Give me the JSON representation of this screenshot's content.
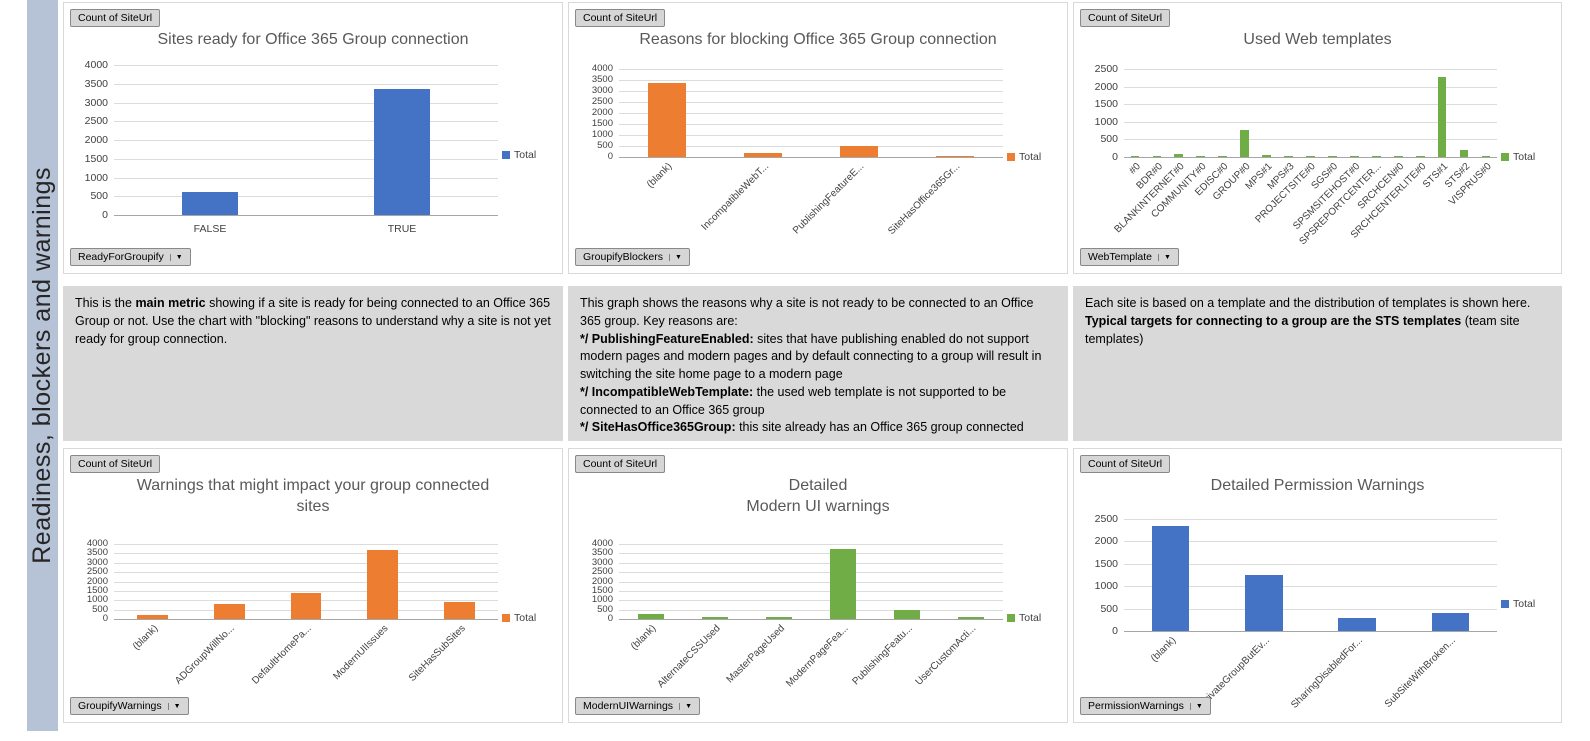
{
  "sidebar": {
    "label": "Readiness, blockers and warnings",
    "bg_color": "#b6c2d6"
  },
  "colors": {
    "blue": "#4472C4",
    "orange": "#ED7D31",
    "green": "#70AD47"
  },
  "common": {
    "count_button": "Count of SiteUrl",
    "legend_label": "Total",
    "dropdown_arrow": "▼"
  },
  "chart_data": [
    {
      "type": "bar",
      "title": "Sites ready for Office 365 Group connection",
      "field": "ReadyForGroupify",
      "color": "blue",
      "categories": [
        "FALSE",
        "TRUE"
      ],
      "values": [
        620,
        3360
      ],
      "ylim": [
        0,
        4000
      ],
      "ytick": 500,
      "grid": true,
      "legend_position": "right"
    },
    {
      "type": "bar",
      "title": "Reasons for blocking Office 365 Group connection",
      "field": "GroupifyBlockers",
      "color": "orange",
      "categories": [
        "(blank)",
        "IncompatibleWebT...",
        "PublishingFeatureE...",
        "SiteHasOffice365Gr..."
      ],
      "values": [
        3350,
        200,
        500,
        60
      ],
      "ylim": [
        0,
        4000
      ],
      "ytick": 500,
      "grid": true,
      "legend_position": "right"
    },
    {
      "type": "bar",
      "title": "Used Web templates",
      "field": "WebTemplate",
      "color": "green",
      "categories": [
        "#0",
        "BDR#0",
        "BLANKINTERNET#0",
        "COMMUNITY#0",
        "EDISC#0",
        "GROUP#0",
        "MPS#1",
        "MPS#3",
        "PROJECTSITE#0",
        "SGS#0",
        "SPSMSITEHOST#0",
        "SPSREPORTCENTER...",
        "SRCHCEN#0",
        "SRCHCENTERLITE#0",
        "STS#1",
        "STS#2",
        "VISPRUS#0"
      ],
      "values": [
        30,
        40,
        90,
        30,
        30,
        760,
        50,
        30,
        40,
        30,
        30,
        30,
        40,
        30,
        2270,
        210,
        40
      ],
      "ylim": [
        0,
        2500
      ],
      "ytick": 500,
      "grid": true,
      "legend_position": "right"
    },
    {
      "type": "bar",
      "title": "Warnings that might impact your group connected\nsites",
      "field": "GroupifyWarnings",
      "color": "orange",
      "categories": [
        "(blank)",
        "ADGroupWillNo...",
        "DefaultHomePa...",
        "ModernUIIssues",
        "SiteHasSubSites"
      ],
      "values": [
        220,
        800,
        1400,
        3700,
        900
      ],
      "ylim": [
        0,
        4000
      ],
      "ytick": 500,
      "grid": true,
      "legend_position": "right"
    },
    {
      "type": "bar",
      "title": "Detailed\nModern UI warnings",
      "field": "ModernUIWarnings",
      "color": "green",
      "categories": [
        "(blank)",
        "AlternateCSSUsed",
        "MasterPageUsed",
        "ModernPageFea...",
        "PublishingFeatu...",
        "UserCustomActi..."
      ],
      "values": [
        280,
        110,
        110,
        3750,
        460,
        110
      ],
      "ylim": [
        0,
        4000
      ],
      "ytick": 500,
      "grid": true,
      "legend_position": "right"
    },
    {
      "type": "bar",
      "title": "Detailed Permission Warnings",
      "field": "PermissionWarnings",
      "color": "blue",
      "categories": [
        "(blank)",
        "PrivateGroupButEv...",
        "SharingDisabledFor...",
        "SubSiteWithBroken..."
      ],
      "values": [
        2350,
        1250,
        300,
        400
      ],
      "ylim": [
        0,
        2500
      ],
      "ytick": 500,
      "grid": true,
      "legend_position": "right"
    }
  ],
  "notes": [
    {
      "segments": [
        {
          "t": "This is the "
        },
        {
          "t": "main metric",
          "b": true
        },
        {
          "t": " showing if a site is ready for being connected to an Office 365 Group or not. Use the chart with \"blocking\" reasons to understand why a site is not yet ready for group connection."
        }
      ]
    },
    {
      "segments": [
        {
          "t": "This graph shows the reasons why a site is not ready to be connected to an Office 365 group. Key reasons are:\n"
        },
        {
          "t": "*/ PublishingFeatureEnabled:",
          "b": true
        },
        {
          "t": " sites that have publishing enabled do not support modern pages and modern pages and by default connecting to a group will result in switching the site home page to a modern page\n"
        },
        {
          "t": "*/ IncompatibleWebTemplate:",
          "b": true
        },
        {
          "t": " the used web template is not supported to be connected to an Office 365 group\n"
        },
        {
          "t": "*/ SiteHasOffice365Group:",
          "b": true
        },
        {
          "t": " this site already has an Office 365 group connected"
        }
      ]
    },
    {
      "segments": [
        {
          "t": "Each site is based on a template and the distribution of templates is shown here. "
        },
        {
          "t": "Typical targets for connecting to a group are the STS templates",
          "b": true
        },
        {
          "t": " (team site templates)"
        }
      ]
    }
  ]
}
